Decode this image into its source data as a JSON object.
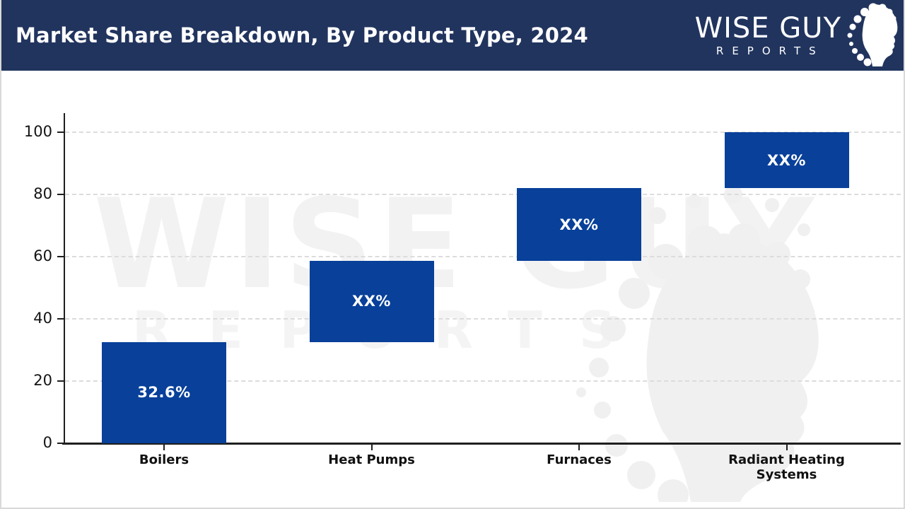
{
  "header": {
    "title": "Market Share Breakdown, By Product Type, 2024",
    "logo": {
      "line1": "WISE GUY",
      "line2": "REPORTS",
      "icon": "dotted-face-profile-icon"
    }
  },
  "watermark": {
    "line1": "WISE GUY",
    "line2": "REPORTS",
    "icon": "dotted-face-profile-watermark"
  },
  "colors": {
    "header_bg": "#21345E",
    "bar": "#08409A",
    "bar_label": "#ffffff",
    "grid": "#dcdcdc",
    "axis": "#1f1f1f",
    "tick_text": "#141414",
    "category_text": "#111111",
    "watermark": "#f2f2f2"
  },
  "chart_data": {
    "type": "bar",
    "subtype": "waterfall",
    "title": "Market Share Breakdown, By Product Type, 2024",
    "categories": [
      "Boilers",
      "Heat Pumps",
      "Furnaces",
      "Radiant Heating Systems"
    ],
    "segments": [
      {
        "category": "Boilers",
        "start": 0,
        "end": 32.6,
        "label": "32.6%"
      },
      {
        "category": "Heat Pumps",
        "start": 32.6,
        "end": 58.6,
        "label": "XX%"
      },
      {
        "category": "Furnaces",
        "start": 58.6,
        "end": 82.0,
        "label": "XX%"
      },
      {
        "category": "Radiant Heating Systems",
        "start": 82.0,
        "end": 100,
        "label": "XX%"
      }
    ],
    "xlabel": "",
    "ylabel": "",
    "ylim": [
      0,
      100
    ],
    "yticks": [
      0,
      20,
      40,
      60,
      80,
      100
    ],
    "grid": "horizontal-dashed",
    "legend": "none"
  }
}
